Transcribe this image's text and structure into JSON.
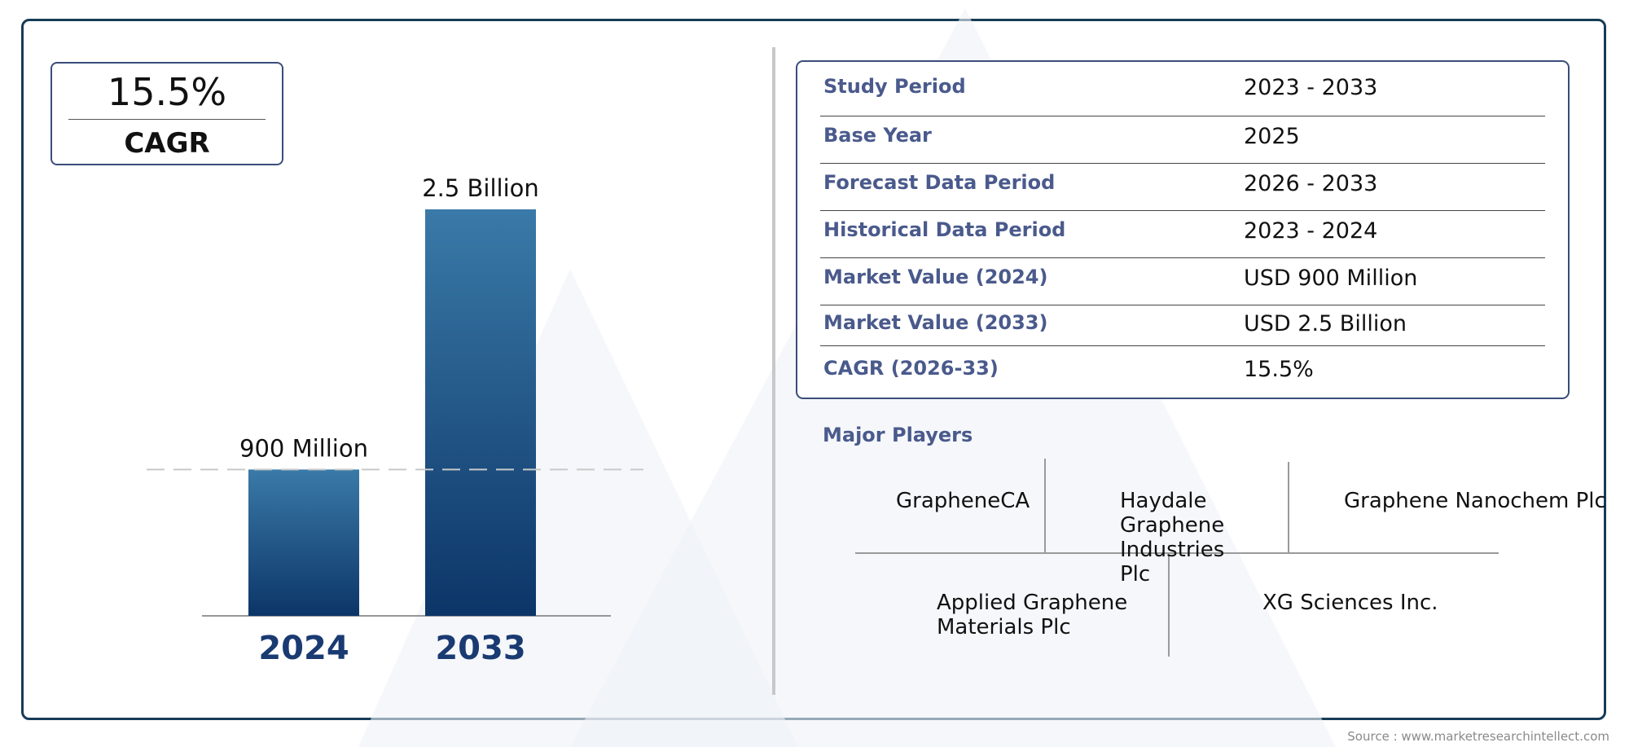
{
  "cagr_badge": {
    "value": "15.5%",
    "label": "CAGR"
  },
  "chart_data": {
    "type": "bar",
    "categories": [
      "2024",
      "2033"
    ],
    "values": [
      0.9,
      2.5
    ],
    "value_labels": [
      "900 Million",
      "2.5 Billion"
    ],
    "ylim": [
      0,
      2.5
    ],
    "reference_line": 0.9,
    "colors": {
      "bar_top": "#3a7aa8",
      "bar_bottom": "#0c3568",
      "category_text": "#1a3a72"
    }
  },
  "market_info": {
    "rows": [
      {
        "key": "Study Period",
        "value": "2023 - 2033"
      },
      {
        "key": "Base Year",
        "value": "2025"
      },
      {
        "key": "Forecast Data Period",
        "value": "2026 - 2033"
      },
      {
        "key": "Historical Data Period",
        "value": "2023 - 2024"
      },
      {
        "key": "Market Value (2024)",
        "value": "USD 900 Million"
      },
      {
        "key": "Market Value (2033)",
        "value": "USD 2.5 Billion"
      },
      {
        "key": "CAGR (2026-33)",
        "value": "15.5%"
      }
    ]
  },
  "major_players": {
    "title": "Major Players",
    "names": [
      "GrapheneCA",
      "Haydale Graphene Industries Plc",
      "Graphene Nanochem Plc",
      "Applied Graphene Materials Plc",
      "XG Sciences Inc."
    ]
  },
  "source": "Source : www.marketresearchintellect.com",
  "colors": {
    "frame": "#163c56",
    "accent_text": "#4a5a8c"
  }
}
